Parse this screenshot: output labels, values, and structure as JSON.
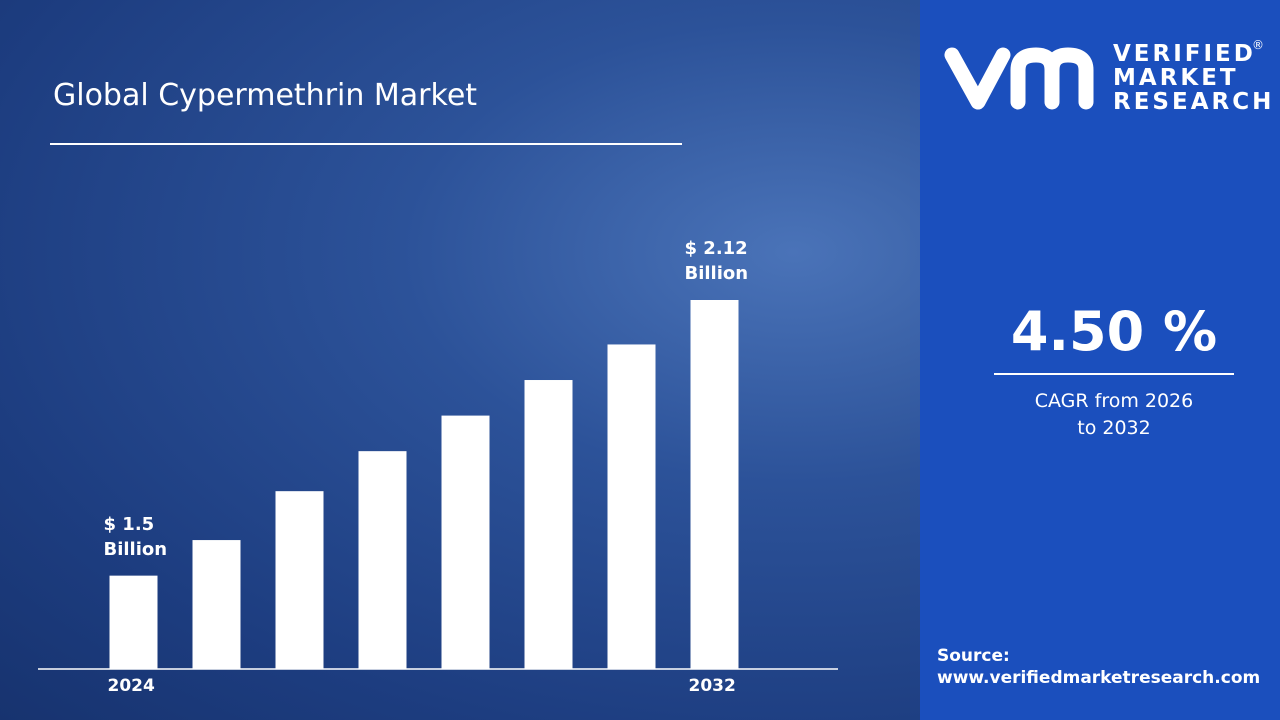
{
  "chart_data": {
    "type": "bar",
    "title": "Global Cypermethrin Market",
    "categories": [
      "2024",
      null,
      null,
      null,
      null,
      null,
      null,
      "2032"
    ],
    "values": [
      1.5,
      1.58,
      1.69,
      1.78,
      1.86,
      1.94,
      2.02,
      2.12
    ],
    "value_labels": [
      "$ 1.5 Billion",
      null,
      null,
      null,
      null,
      null,
      null,
      "$ 2.12 Billion"
    ],
    "color": "#ffffff",
    "ylim": [
      1.29,
      2.12
    ],
    "grid": false
  },
  "panel": {
    "logo": {
      "line1": "VERIFIED",
      "line2": "MARKET",
      "line3": "RESEARCH",
      "mark": "®"
    },
    "cagr_value": "4.50 %",
    "cagr_label": "CAGR from 2026 to 2032",
    "source_label": "Source:",
    "source_url": "www.verifiedmarketresearch.com"
  }
}
